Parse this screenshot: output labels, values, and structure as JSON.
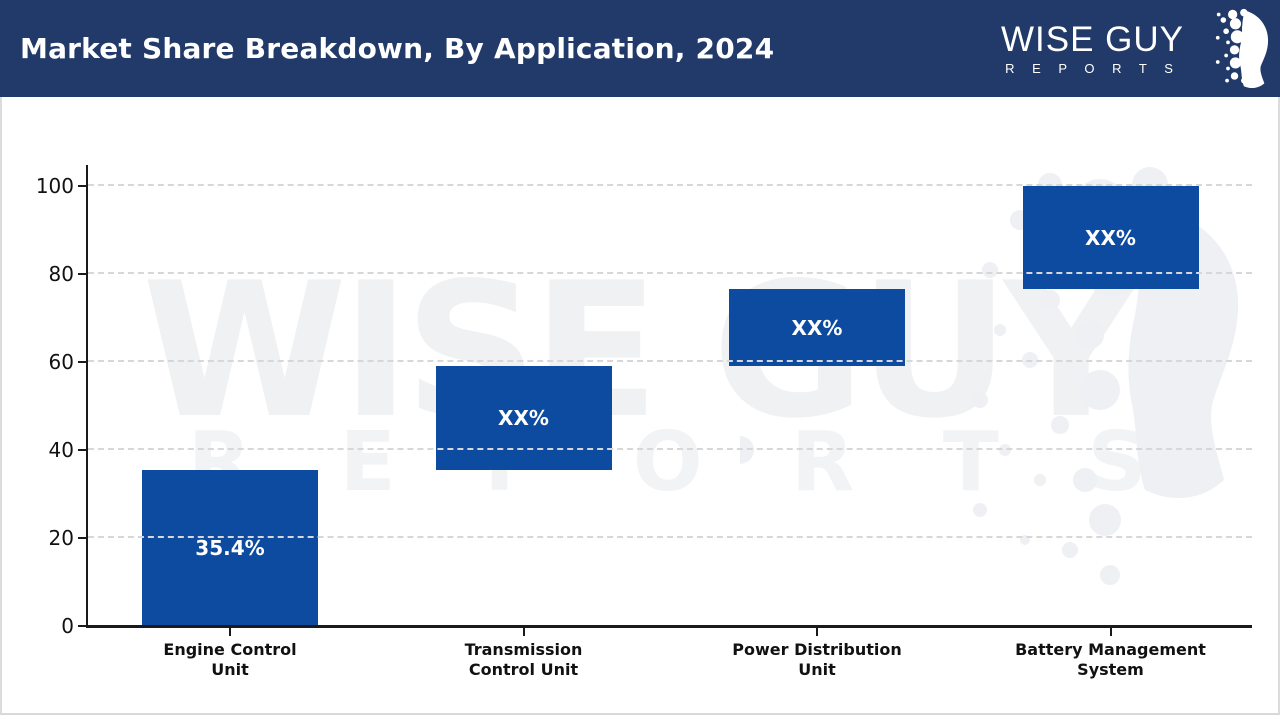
{
  "header": {
    "title": "Market Share Breakdown, By Application, 2024",
    "logo": {
      "name_line": "WISE GUY",
      "sub_line": "R E P O R T S"
    }
  },
  "watermark": {
    "line1": "WISE GUY",
    "line2": "R E P O R T S"
  },
  "chart_data": {
    "type": "bar",
    "subtype": "waterfall",
    "title": "Market Share Breakdown, By Application, 2024",
    "categories": [
      "Engine Control\nUnit",
      "Transmission\nControl Unit",
      "Power Distribution\nUnit",
      "Battery Management\nSystem"
    ],
    "segments": [
      {
        "category": "Engine Control Unit",
        "start": 0,
        "end": 35.4,
        "label": "35.4%"
      },
      {
        "category": "Transmission Control Unit",
        "start": 35.4,
        "end": 59.0,
        "label": "XX%"
      },
      {
        "category": "Power Distribution Unit",
        "start": 59.0,
        "end": 76.5,
        "label": "XX%"
      },
      {
        "category": "Battery Management System",
        "start": 76.5,
        "end": 100.0,
        "label": "XX%"
      }
    ],
    "y_axis": {
      "ticks": [
        0,
        20,
        40,
        60,
        80,
        100
      ],
      "range": [
        0,
        100
      ]
    },
    "x_axis": {
      "label": "",
      "tick_style": "center-under-bar"
    },
    "grid": "horizontal-dashed",
    "legend": "none",
    "colors": {
      "bar": "#0c4ba0",
      "value_label": "#ffffff"
    }
  },
  "colors": {
    "header_bg": "#213a69",
    "axis": "#1a1a1a",
    "gridline": "#d7d7d7",
    "watermark": "#eff1f3",
    "frame_border": "#d9d9d9"
  }
}
